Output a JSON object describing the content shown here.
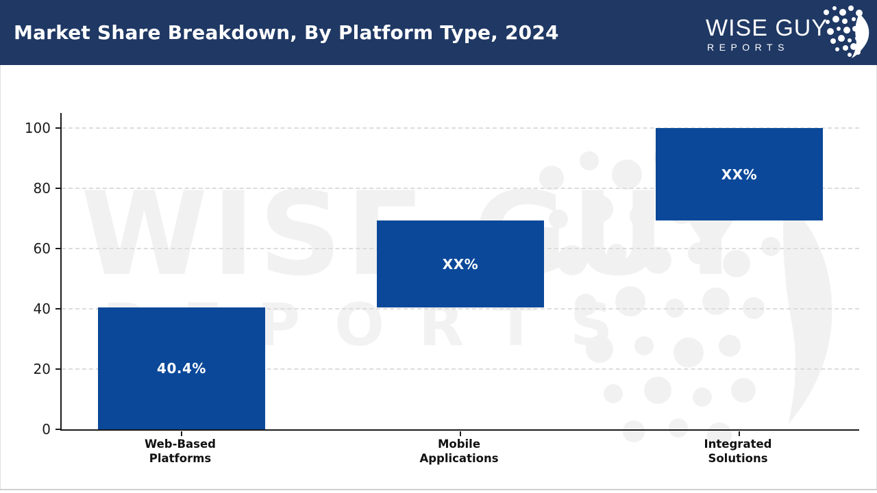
{
  "header": {
    "title": "Market Share Breakdown, By Platform Type, 2024",
    "logo_line1": "WISE GUY",
    "logo_line2": "REPORTS",
    "bg_color": "#1f3864"
  },
  "watermark": {
    "line1": "WISE GUY",
    "line2": "REPORTS"
  },
  "chart_data": {
    "type": "bar",
    "subtype": "waterfall",
    "title": "Market Share Breakdown, By Platform Type, 2024",
    "categories": [
      "Web-Based\nPlatforms",
      "Mobile\nApplications",
      "Integrated\nSolutions"
    ],
    "bars": [
      {
        "category": "Web-Based Platforms",
        "start": 0,
        "end": 40.4,
        "label": "40.4%"
      },
      {
        "category": "Mobile Applications",
        "start": 40.4,
        "end": 69.3,
        "label": "XX%"
      },
      {
        "category": "Integrated Solutions",
        "start": 69.3,
        "end": 100,
        "label": "XX%"
      }
    ],
    "xlabel": "",
    "ylabel": "",
    "ylim": [
      0,
      105
    ],
    "yticks": [
      0,
      20,
      40,
      60,
      80,
      100
    ],
    "grid": {
      "axis": "y",
      "style": "dashed",
      "color": "#dcdcdc"
    },
    "legend": "none",
    "bar_color": "#0b4899",
    "bar_label_color": "#ffffff",
    "axis_color": "#1a1a1a"
  }
}
